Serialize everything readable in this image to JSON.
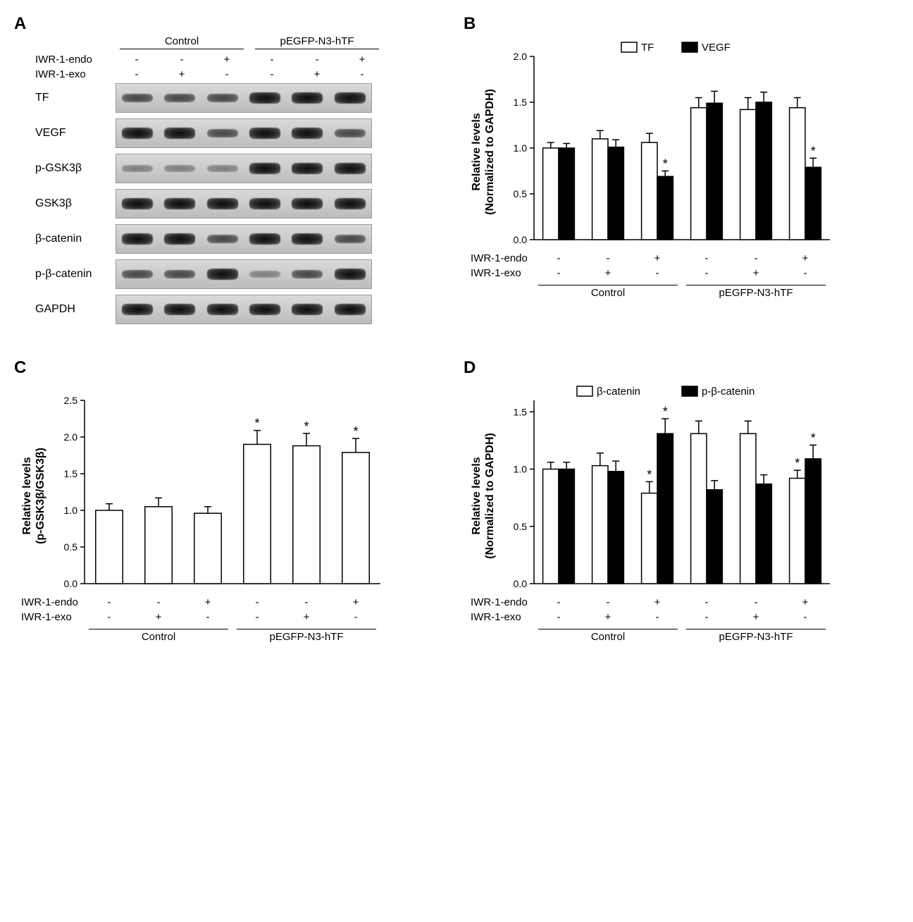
{
  "colors": {
    "background": "#ffffff",
    "axis": "#000000",
    "bar_open_fill": "#ffffff",
    "bar_open_stroke": "#000000",
    "bar_filled": "#000000",
    "error_bar": "#000000",
    "text": "#000000"
  },
  "typography": {
    "panel_letter_fontsize": 24,
    "panel_letter_weight": "bold",
    "axis_label_fontsize": 16,
    "axis_label_weight": "bold",
    "tick_fontsize": 14,
    "treatment_fontsize": 15,
    "legend_fontsize": 15
  },
  "panelA": {
    "letter": "A",
    "groups": [
      "Control",
      "pEGFP-N3-hTF"
    ],
    "treatments": [
      {
        "label": "IWR-1-endo",
        "marks": [
          "-",
          "-",
          "+",
          "-",
          "-",
          "+"
        ]
      },
      {
        "label": "IWR-1-exo",
        "marks": [
          "-",
          "+",
          "-",
          "-",
          "+",
          "-"
        ]
      }
    ],
    "proteins": [
      {
        "name": "TF",
        "intensities": [
          "m",
          "m",
          "m",
          "s",
          "s",
          "s"
        ]
      },
      {
        "name": "VEGF",
        "intensities": [
          "s",
          "s",
          "m",
          "s",
          "s",
          "m"
        ]
      },
      {
        "name": "p-GSK3β",
        "intensities": [
          "w",
          "w",
          "w",
          "s",
          "s",
          "s"
        ]
      },
      {
        "name": "GSK3β",
        "intensities": [
          "s",
          "s",
          "s",
          "s",
          "s",
          "s"
        ]
      },
      {
        "name": "β-catenin",
        "intensities": [
          "s",
          "s",
          "m",
          "s",
          "s",
          "m"
        ]
      },
      {
        "name": "p-β-catenin",
        "intensities": [
          "m",
          "m",
          "s",
          "w",
          "m",
          "s"
        ]
      },
      {
        "name": "GAPDH",
        "intensities": [
          "s",
          "s",
          "s",
          "s",
          "s",
          "s"
        ]
      }
    ]
  },
  "panelB": {
    "letter": "B",
    "type": "bar",
    "ylabel_line1": "Relative levels",
    "ylabel_line2": "(Normalized to GAPDH)",
    "ylim": [
      0,
      2.0
    ],
    "ytick_step": 0.5,
    "yticks": [
      0,
      0.5,
      1.0,
      1.5,
      2.0
    ],
    "legend": [
      {
        "label": "TF",
        "fill": "#ffffff",
        "stroke": "#000000"
      },
      {
        "label": "VEGF",
        "fill": "#000000",
        "stroke": "#000000"
      }
    ],
    "bar_width": 0.32,
    "groups": 6,
    "series": [
      {
        "name": "TF",
        "values": [
          1.0,
          1.1,
          1.06,
          1.44,
          1.42,
          1.44
        ],
        "errors": [
          0.06,
          0.09,
          0.1,
          0.11,
          0.13,
          0.11
        ],
        "sig": [
          "",
          "",
          "",
          "",
          "",
          ""
        ]
      },
      {
        "name": "VEGF",
        "values": [
          1.0,
          1.01,
          0.69,
          1.49,
          1.5,
          0.79
        ],
        "errors": [
          0.05,
          0.08,
          0.06,
          0.13,
          0.11,
          0.1
        ],
        "sig": [
          "",
          "",
          "*",
          "",
          "",
          "*"
        ]
      }
    ],
    "under": {
      "rows": [
        {
          "label": "IWR-1-endo",
          "marks": [
            "-",
            "-",
            "+",
            "-",
            "-",
            "+"
          ]
        },
        {
          "label": "IWR-1-exo",
          "marks": [
            "-",
            "+",
            "-",
            "-",
            "+",
            "-"
          ]
        }
      ],
      "group_labels": [
        "Control",
        "pEGFP-N3-hTF"
      ]
    }
  },
  "panelC": {
    "letter": "C",
    "type": "bar",
    "ylabel_line1": "Relative levels",
    "ylabel_line2": "(p-GSK3β/GSK3β)",
    "ylim": [
      0,
      2.5
    ],
    "ytick_step": 0.5,
    "yticks": [
      0,
      0.5,
      1.0,
      1.5,
      2.0,
      2.5
    ],
    "bar_width": 0.55,
    "groups": 6,
    "series": [
      {
        "name": "p-GSK3b/GSK3b",
        "fill": "#ffffff",
        "stroke": "#000000",
        "values": [
          1.0,
          1.05,
          0.96,
          1.9,
          1.88,
          1.79
        ],
        "errors": [
          0.09,
          0.12,
          0.09,
          0.19,
          0.17,
          0.19
        ],
        "sig": [
          "",
          "",
          "",
          "*",
          "*",
          "*"
        ]
      }
    ],
    "under": {
      "rows": [
        {
          "label": "IWR-1-endo",
          "marks": [
            "-",
            "-",
            "+",
            "-",
            "-",
            "+"
          ]
        },
        {
          "label": "IWR-1-exo",
          "marks": [
            "-",
            "+",
            "-",
            "-",
            "+",
            "-"
          ]
        }
      ],
      "group_labels": [
        "Control",
        "pEGFP-N3-hTF"
      ]
    }
  },
  "panelD": {
    "letter": "D",
    "type": "bar",
    "ylabel_line1": "Relative levels",
    "ylabel_line2": "(Normalized to GAPDH)",
    "ylim": [
      0,
      1.6
    ],
    "ytick_step": 0.5,
    "yticks": [
      0,
      0.5,
      1.0,
      1.5
    ],
    "legend": [
      {
        "label": "β-catenin",
        "fill": "#ffffff",
        "stroke": "#000000"
      },
      {
        "label": "p-β-catenin",
        "fill": "#000000",
        "stroke": "#000000"
      }
    ],
    "bar_width": 0.32,
    "groups": 6,
    "series": [
      {
        "name": "b-catenin",
        "values": [
          1.0,
          1.03,
          0.79,
          1.31,
          1.31,
          0.92
        ],
        "errors": [
          0.06,
          0.11,
          0.1,
          0.11,
          0.11,
          0.07
        ],
        "sig": [
          "",
          "",
          "*",
          "",
          "",
          "*"
        ]
      },
      {
        "name": "p-b-catenin",
        "values": [
          1.0,
          0.98,
          1.31,
          0.82,
          0.87,
          1.09
        ],
        "errors": [
          0.06,
          0.09,
          0.13,
          0.08,
          0.08,
          0.12
        ],
        "sig": [
          "",
          "",
          "*",
          "",
          "",
          "*"
        ]
      }
    ],
    "under": {
      "rows": [
        {
          "label": "IWR-1-endo",
          "marks": [
            "-",
            "-",
            "+",
            "-",
            "-",
            "+"
          ]
        },
        {
          "label": "IWR-1-exo",
          "marks": [
            "-",
            "+",
            "-",
            "-",
            "+",
            "-"
          ]
        }
      ],
      "group_labels": [
        "Control",
        "pEGFP-N3-hTF"
      ]
    }
  }
}
